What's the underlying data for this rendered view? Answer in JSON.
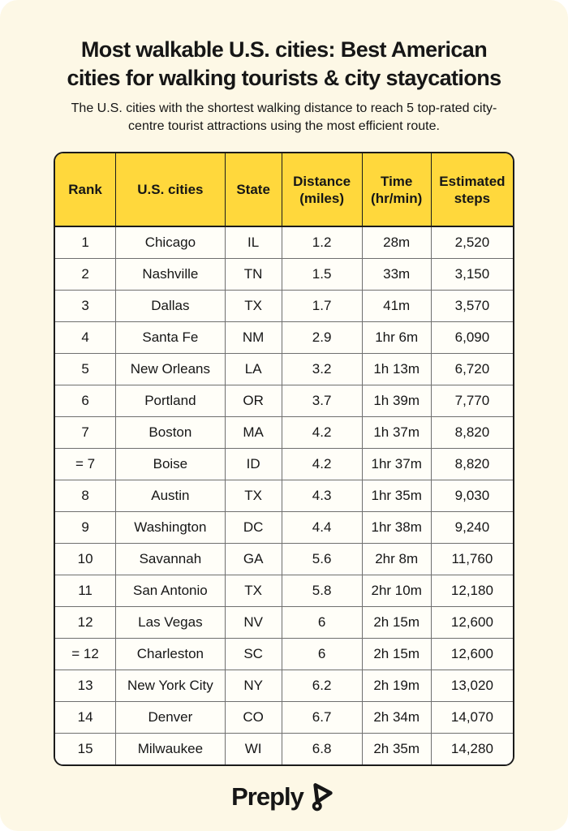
{
  "header": {
    "title": "Most walkable U.S. cities: Best American\ncities for walking tourists & city staycations",
    "subtitle": "The U.S. cities with the shortest walking distance to reach 5 top-rated city-\ncentre tourist attractions using the most efficient route."
  },
  "chart_data": {
    "type": "table",
    "title": "Most walkable U.S. cities: Best American cities for walking tourists & city staycations",
    "columns": [
      "Rank",
      "U.S. cities",
      "State",
      "Distance (miles)",
      "Time (hr/min)",
      "Estimated steps"
    ],
    "rows": [
      [
        "1",
        "Chicago",
        "IL",
        "1.2",
        "28m",
        "2,520"
      ],
      [
        "2",
        "Nashville",
        "TN",
        "1.5",
        "33m",
        "3,150"
      ],
      [
        "3",
        "Dallas",
        "TX",
        "1.7",
        "41m",
        "3,570"
      ],
      [
        "4",
        "Santa Fe",
        "NM",
        "2.9",
        "1hr 6m",
        "6,090"
      ],
      [
        "5",
        "New Orleans",
        "LA",
        "3.2",
        "1h 13m",
        "6,720"
      ],
      [
        "6",
        "Portland",
        "OR",
        "3.7",
        "1h 39m",
        "7,770"
      ],
      [
        "7",
        "Boston",
        "MA",
        "4.2",
        "1h 37m",
        "8,820"
      ],
      [
        "= 7",
        "Boise",
        "ID",
        "4.2",
        "1hr 37m",
        "8,820"
      ],
      [
        "8",
        "Austin",
        "TX",
        "4.3",
        "1hr 35m",
        "9,030"
      ],
      [
        "9",
        "Washington",
        "DC",
        "4.4",
        "1hr 38m",
        "9,240"
      ],
      [
        "10",
        "Savannah",
        "GA",
        "5.6",
        "2hr 8m",
        "11,760"
      ],
      [
        "11",
        "San Antonio",
        "TX",
        "5.8",
        "2hr 10m",
        "12,180"
      ],
      [
        "12",
        "Las Vegas",
        "NV",
        "6",
        "2h 15m",
        "12,600"
      ],
      [
        "= 12",
        "Charleston",
        "SC",
        "6",
        "2h 15m",
        "12,600"
      ],
      [
        "13",
        "New York City",
        "NY",
        "6.2",
        "2h 19m",
        "13,020"
      ],
      [
        "14",
        "Denver",
        "CO",
        "6.7",
        "2h 34m",
        "14,070"
      ],
      [
        "15",
        "Milwaukee",
        "WI",
        "6.8",
        "2h 35m",
        "14,280"
      ]
    ],
    "column_widths_pct": [
      13.3,
      23.8,
      12.4,
      17.5,
      15.1,
      17.9
    ]
  },
  "footer": {
    "brand": "Preply",
    "logo_icon": "preply-speech-bubble-icon"
  },
  "colors": {
    "page_bg": "#ffffff",
    "card_bg": "#FDF8E6",
    "header_yellow": "#FFD83C",
    "table_cell_bg": "#FFFEF8",
    "text": "#161616",
    "outer_border": "#1b1b1b",
    "inner_border": "#6f6f6f"
  }
}
